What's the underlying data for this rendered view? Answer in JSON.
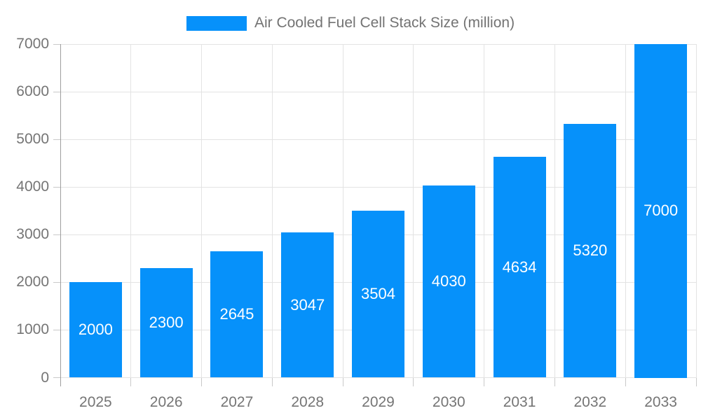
{
  "legend": {
    "label": "Air Cooled Fuel Cell Stack Size (million)"
  },
  "chart_data": {
    "type": "bar",
    "title": "",
    "xlabel": "",
    "ylabel": "",
    "series_name": "Air Cooled Fuel Cell Stack Size (million)",
    "categories": [
      "2025",
      "2026",
      "2027",
      "2028",
      "2029",
      "2030",
      "2031",
      "2032",
      "2033"
    ],
    "values": [
      2000,
      2300,
      2645,
      3047,
      3504,
      4030,
      4634,
      5320,
      7000
    ],
    "ylim": [
      0,
      7000
    ],
    "ytick_step": 1000,
    "ytick_labels": [
      "0",
      "1000",
      "2000",
      "3000",
      "4000",
      "5000",
      "6000",
      "7000"
    ],
    "grid": true,
    "legend_position": "top-center",
    "value_labels": "inside-center"
  },
  "colors": {
    "bar": "#0691fa",
    "bar_value_text": "#ffffff",
    "gridline": "#e3e3e3",
    "axis_line": "#9e9e9e",
    "tick": "#c9c9c9",
    "axis_text": "#757575",
    "legend_text": "#737373",
    "background": "#ffffff"
  }
}
